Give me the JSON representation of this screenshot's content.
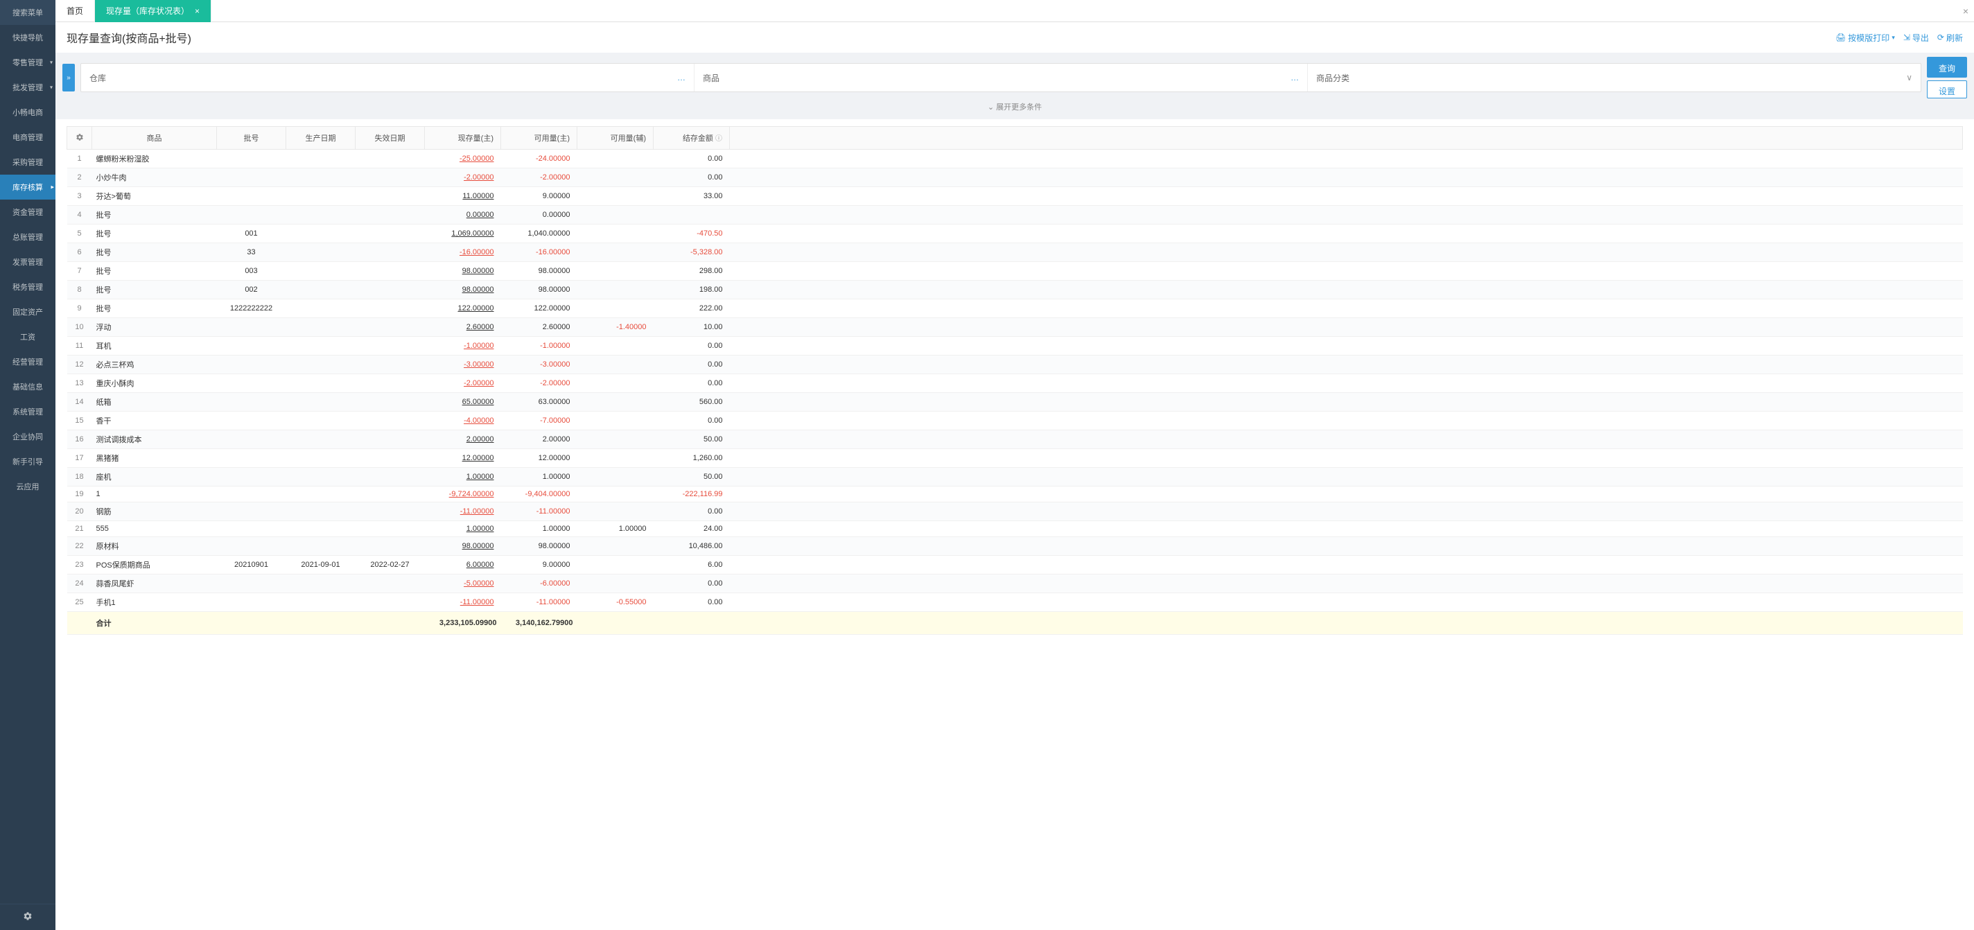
{
  "sidebar": {
    "items": [
      {
        "label": "搜索菜单"
      },
      {
        "label": "快捷导航"
      },
      {
        "label": "零售管理",
        "expandable": true
      },
      {
        "label": "批发管理",
        "expandable": true
      },
      {
        "label": "小畅电商"
      },
      {
        "label": "电商管理"
      },
      {
        "label": "采购管理"
      },
      {
        "label": "库存核算",
        "active": true
      },
      {
        "label": "资金管理"
      },
      {
        "label": "总账管理"
      },
      {
        "label": "发票管理"
      },
      {
        "label": "税务管理"
      },
      {
        "label": "固定资产"
      },
      {
        "label": "工资"
      },
      {
        "label": "经营管理"
      },
      {
        "label": "基础信息"
      },
      {
        "label": "系统管理"
      },
      {
        "label": "企业协同"
      },
      {
        "label": "新手引导"
      },
      {
        "label": "云应用"
      }
    ]
  },
  "tabs": {
    "items": [
      {
        "label": "首页"
      },
      {
        "label": "现存量（库存状况表）",
        "active": true,
        "closable": true
      }
    ]
  },
  "page": {
    "title": "现存量查询(按商品+批号)"
  },
  "toolbar": {
    "print": "按模版打印",
    "export": "导出",
    "refresh": "刷新"
  },
  "filters": {
    "warehouse_label": "仓库",
    "product_label": "商品",
    "category_label": "商品分类",
    "query_btn": "查询",
    "reset_btn": "设置",
    "expand_more": "展开更多条件",
    "more": "…"
  },
  "table": {
    "headers": {
      "product": "商品",
      "batch": "批号",
      "produce_date": "生产日期",
      "expire_date": "失效日期",
      "stock_main": "现存量(主)",
      "avail_main": "可用量(主)",
      "avail_aux": "可用量(辅)",
      "amount": "结存金额"
    },
    "rows": [
      {
        "idx": "1",
        "product": "螺蛳粉米粉湿胶",
        "batch": "",
        "pd": "",
        "ed": "",
        "stock": "-25.00000",
        "stock_neg": true,
        "avail": "-24.00000",
        "avail_neg": true,
        "aux": "",
        "amount": "0.00"
      },
      {
        "idx": "2",
        "product": "小炒牛肉",
        "batch": "",
        "pd": "",
        "ed": "",
        "stock": "-2.00000",
        "stock_neg": true,
        "avail": "-2.00000",
        "avail_neg": true,
        "aux": "",
        "amount": "0.00"
      },
      {
        "idx": "3",
        "product": "芬达>葡萄",
        "batch": "",
        "pd": "",
        "ed": "",
        "stock": "11.00000",
        "avail": "9.00000",
        "aux": "",
        "amount": "33.00"
      },
      {
        "idx": "4",
        "product": "批号",
        "batch": "",
        "pd": "",
        "ed": "",
        "stock": "0.00000",
        "avail": "0.00000",
        "aux": "",
        "amount": ""
      },
      {
        "idx": "5",
        "product": "批号",
        "batch": "001",
        "pd": "",
        "ed": "",
        "stock": "1,069.00000",
        "avail": "1,040.00000",
        "aux": "",
        "amount": "-470.50",
        "amount_neg": true
      },
      {
        "idx": "6",
        "product": "批号",
        "batch": "33",
        "pd": "",
        "ed": "",
        "stock": "-16.00000",
        "stock_neg": true,
        "avail": "-16.00000",
        "avail_neg": true,
        "aux": "",
        "amount": "-5,328.00",
        "amount_neg": true
      },
      {
        "idx": "7",
        "product": "批号",
        "batch": "003",
        "pd": "",
        "ed": "",
        "stock": "98.00000",
        "avail": "98.00000",
        "aux": "",
        "amount": "298.00"
      },
      {
        "idx": "8",
        "product": "批号",
        "batch": "002",
        "pd": "",
        "ed": "",
        "stock": "98.00000",
        "avail": "98.00000",
        "aux": "",
        "amount": "198.00"
      },
      {
        "idx": "9",
        "product": "批号",
        "batch": "1222222222",
        "pd": "",
        "ed": "",
        "stock": "122.00000",
        "avail": "122.00000",
        "aux": "",
        "amount": "222.00"
      },
      {
        "idx": "10",
        "product": "浮动",
        "batch": "",
        "pd": "",
        "ed": "",
        "stock": "2.60000",
        "avail": "2.60000",
        "aux": "-1.40000",
        "aux_neg": true,
        "amount": "10.00"
      },
      {
        "idx": "11",
        "product": "耳机",
        "batch": "",
        "pd": "",
        "ed": "",
        "stock": "-1.00000",
        "stock_neg": true,
        "avail": "-1.00000",
        "avail_neg": true,
        "aux": "",
        "amount": "0.00"
      },
      {
        "idx": "12",
        "product": "必点三杯鸡",
        "batch": "",
        "pd": "",
        "ed": "",
        "stock": "-3.00000",
        "stock_neg": true,
        "avail": "-3.00000",
        "avail_neg": true,
        "aux": "",
        "amount": "0.00"
      },
      {
        "idx": "13",
        "product": "重庆小酥肉",
        "batch": "",
        "pd": "",
        "ed": "",
        "stock": "-2.00000",
        "stock_neg": true,
        "avail": "-2.00000",
        "avail_neg": true,
        "aux": "",
        "amount": "0.00"
      },
      {
        "idx": "14",
        "product": "纸箱",
        "batch": "",
        "pd": "",
        "ed": "",
        "stock": "65.00000",
        "avail": "63.00000",
        "aux": "",
        "amount": "560.00"
      },
      {
        "idx": "15",
        "product": "香干",
        "batch": "",
        "pd": "",
        "ed": "",
        "stock": "-4.00000",
        "stock_neg": true,
        "avail": "-7.00000",
        "avail_neg": true,
        "aux": "",
        "amount": "0.00"
      },
      {
        "idx": "16",
        "product": "测试调拨成本",
        "batch": "",
        "pd": "",
        "ed": "",
        "stock": "2.00000",
        "avail": "2.00000",
        "aux": "",
        "amount": "50.00"
      },
      {
        "idx": "17",
        "product": "黑猪猪",
        "batch": "",
        "pd": "",
        "ed": "",
        "stock": "12.00000",
        "avail": "12.00000",
        "aux": "",
        "amount": "1,260.00"
      },
      {
        "idx": "18",
        "product": "座机",
        "batch": "",
        "pd": "",
        "ed": "",
        "stock": "1.00000",
        "avail": "1.00000",
        "aux": "",
        "amount": "50.00"
      },
      {
        "idx": "19",
        "product": "1",
        "batch": "",
        "pd": "",
        "ed": "",
        "stock": "-9,724.00000",
        "stock_neg": true,
        "avail": "-9,404.00000",
        "avail_neg": true,
        "aux": "",
        "amount": "-222,116.99",
        "amount_neg": true
      },
      {
        "idx": "20",
        "product": "钢筋",
        "batch": "",
        "pd": "",
        "ed": "",
        "stock": "-11.00000",
        "stock_neg": true,
        "avail": "-11.00000",
        "avail_neg": true,
        "aux": "",
        "amount": "0.00"
      },
      {
        "idx": "21",
        "product": "555",
        "batch": "",
        "pd": "",
        "ed": "",
        "stock": "1.00000",
        "avail": "1.00000",
        "aux": "1.00000",
        "amount": "24.00"
      },
      {
        "idx": "22",
        "product": "原材料",
        "batch": "",
        "pd": "",
        "ed": "",
        "stock": "98.00000",
        "avail": "98.00000",
        "aux": "",
        "amount": "10,486.00"
      },
      {
        "idx": "23",
        "product": "POS保质期商品",
        "batch": "20210901",
        "pd": "2021-09-01",
        "ed": "2022-02-27",
        "stock": "6.00000",
        "avail": "9.00000",
        "aux": "",
        "amount": "6.00"
      },
      {
        "idx": "24",
        "product": "蒜香凤尾虾",
        "batch": "",
        "pd": "",
        "ed": "",
        "stock": "-5.00000",
        "stock_neg": true,
        "avail": "-6.00000",
        "avail_neg": true,
        "aux": "",
        "amount": "0.00"
      },
      {
        "idx": "25",
        "product": "手机1",
        "batch": "",
        "pd": "",
        "ed": "",
        "stock": "-11.00000",
        "stock_neg": true,
        "avail": "-11.00000",
        "avail_neg": true,
        "aux": "-0.55000",
        "aux_neg": true,
        "amount": "0.00"
      }
    ],
    "total": {
      "label": "合计",
      "stock": "3,233,105.09900",
      "avail": "3,140,162.79900"
    }
  }
}
